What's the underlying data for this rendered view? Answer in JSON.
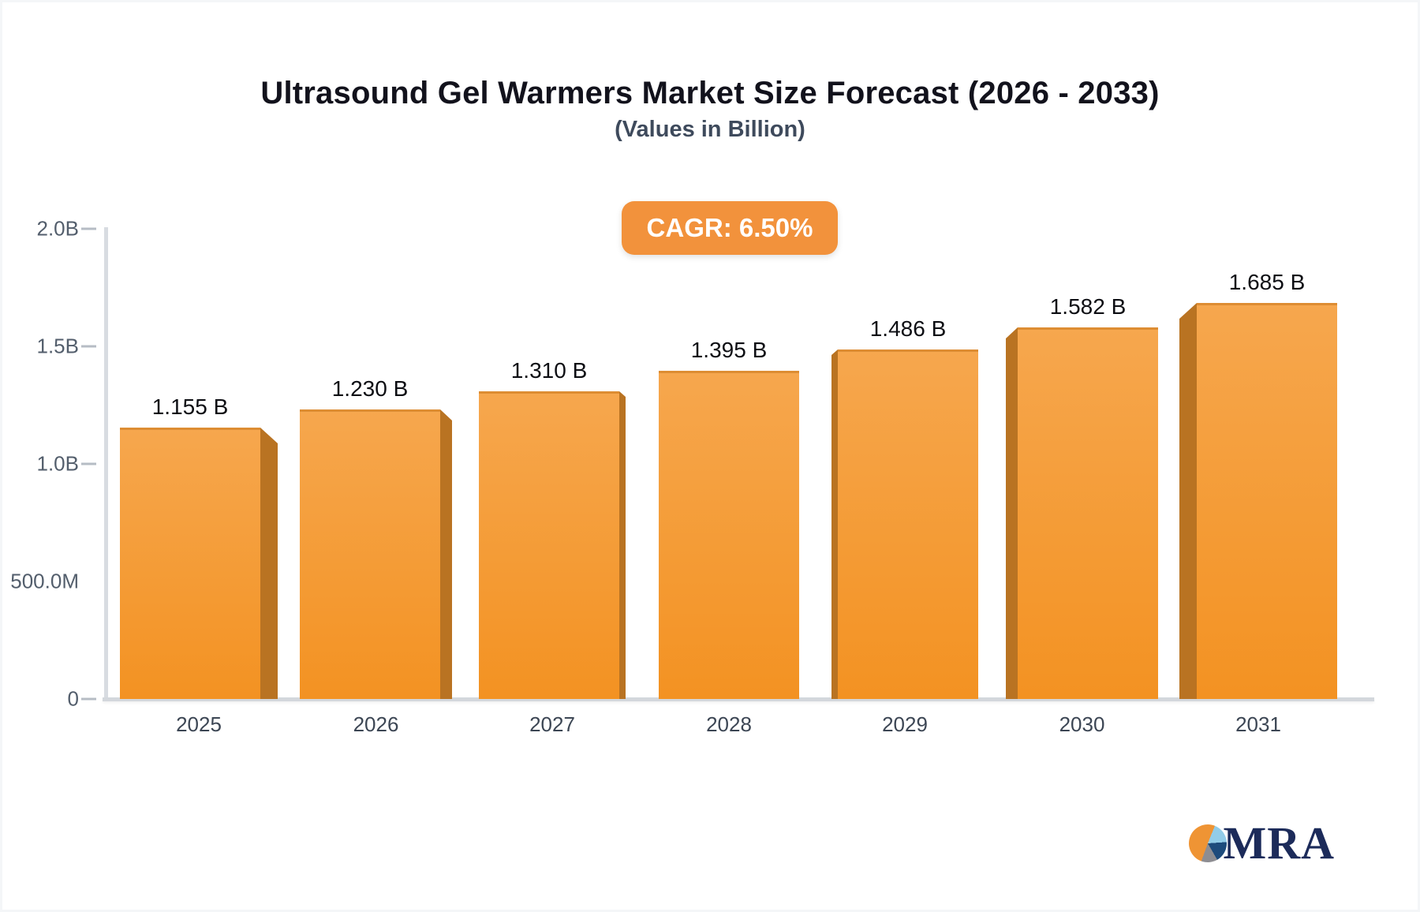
{
  "title": "Ultrasound Gel Warmers Market Size Forecast (2026 - 2033)",
  "subtitle": "(Values in Billion)",
  "badge": {
    "label": "CAGR: 6.50%",
    "bg_color": "#f2923c"
  },
  "chart_data": {
    "type": "bar",
    "categories": [
      "2025",
      "2026",
      "2027",
      "2028",
      "2029",
      "2030",
      "2031"
    ],
    "values": [
      1.155,
      1.23,
      1.31,
      1.395,
      1.486,
      1.582,
      1.685
    ],
    "bar_labels": [
      "1.155 B",
      "1.230 B",
      "1.310 B",
      "1.395 B",
      "1.486 B",
      "1.582 B",
      "1.685 B"
    ],
    "title": "Ultrasound Gel Warmers Market Size Forecast (2026 - 2033)",
    "subtitle": "(Values in Billion)",
    "annotation": "CAGR: 6.50%",
    "xlabel": "",
    "ylabel": "",
    "ylim": [
      0,
      2.0
    ],
    "grid": false,
    "y_ticks": [
      {
        "label": "2.0B",
        "value": 2.0,
        "dash": true
      },
      {
        "label": "1.5B",
        "value": 1.5,
        "dash": true
      },
      {
        "label": "1.0B",
        "value": 1.0,
        "dash": true
      },
      {
        "label": "500.0M",
        "value": 0.5,
        "dash": false
      },
      {
        "label": "0",
        "value": 0.0,
        "dash": true
      }
    ],
    "colors": {
      "bar_face_top": "#f6a74e",
      "bar_face_bottom": "#f39222",
      "bar_side": "#b97322",
      "axis_line": "#d8dce1",
      "value_text": "#0d0e13",
      "tick_text": "#535e6c",
      "year_text": "#3c4654"
    }
  },
  "logo": {
    "text": "MRA",
    "text_color": "#1c2b5a",
    "pie_orange": "#ef9434",
    "pie_lightblue": "#92cce8",
    "pie_navy": "#1d4b7c",
    "pie_gray": "#8d8d92"
  }
}
